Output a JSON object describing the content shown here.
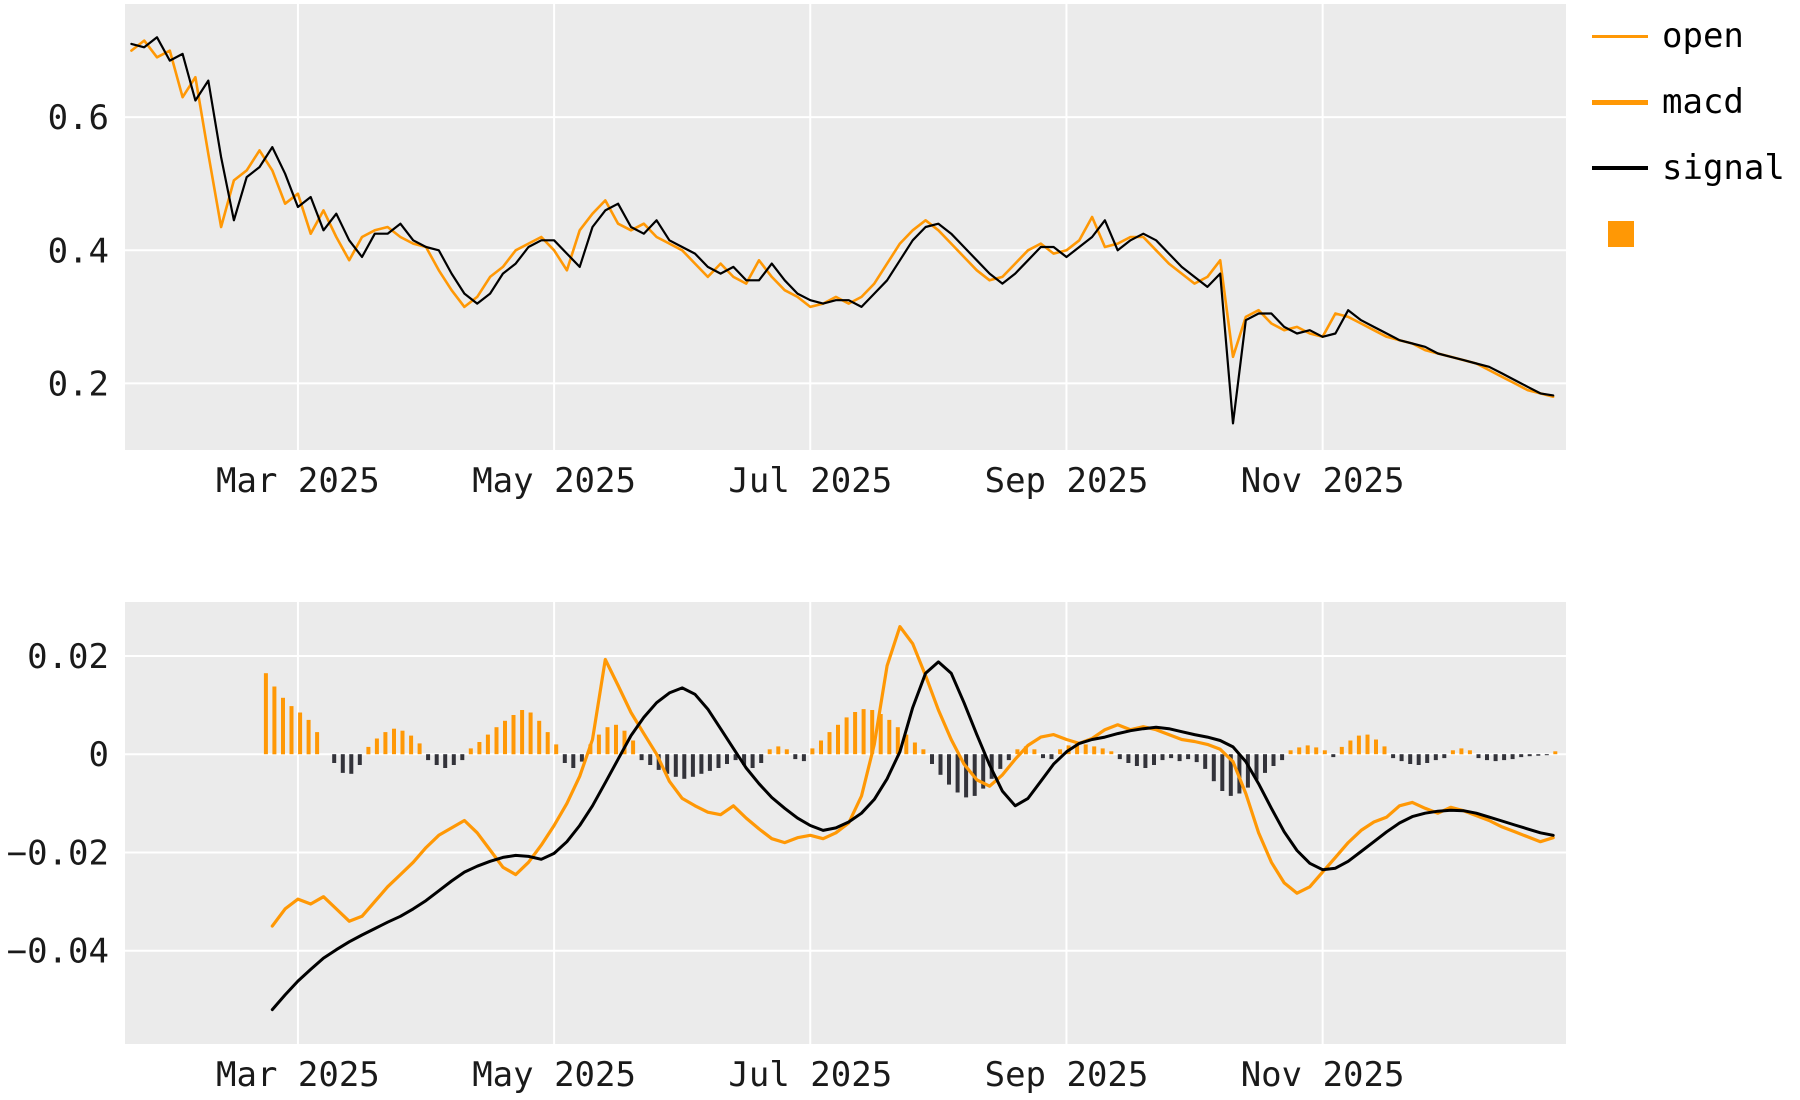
{
  "figure": {
    "background": "#ffffff",
    "panel_bg": "#ebebeb",
    "grid_color": "#ffffff",
    "tick_color": "#1a1a1a",
    "orange": "#ff9805",
    "black": "#000000",
    "histogram_negative": "#33333a"
  },
  "legend": {
    "items": [
      {
        "label": "open",
        "type": "line",
        "color": "#ff9805",
        "weight": 3
      },
      {
        "label": "macd",
        "type": "line",
        "color": "#ff9805",
        "weight": 5
      },
      {
        "label": "signal",
        "type": "line",
        "color": "#000000",
        "weight": 4
      },
      {
        "label": "",
        "type": "square",
        "color": "#ff9805"
      }
    ]
  },
  "chart_data": [
    {
      "type": "line",
      "panel": "price",
      "title": "",
      "xlabel": "",
      "ylabel": "",
      "x_unit": "months_after_2025-01-01",
      "xlim": [
        0.65,
        11.9
      ],
      "ylim": [
        0.1,
        0.77
      ],
      "grid": true,
      "xticks": [
        {
          "value": 2,
          "label": "Mar 2025"
        },
        {
          "value": 4,
          "label": "May 2025"
        },
        {
          "value": 6,
          "label": "Jul 2025"
        },
        {
          "value": 8,
          "label": "Sep 2025"
        },
        {
          "value": 10,
          "label": "Nov 2025"
        }
      ],
      "yticks": [
        {
          "value": 0.2,
          "label": "0.2"
        },
        {
          "value": 0.4,
          "label": "0.4"
        },
        {
          "value": 0.6,
          "label": "0.6"
        }
      ],
      "series": [
        {
          "name": "open",
          "color": "#ff9805",
          "width": 2.6,
          "start": 0.7,
          "step": 0.1,
          "values": [
            0.7,
            0.715,
            0.69,
            0.7,
            0.63,
            0.66,
            0.545,
            0.435,
            0.505,
            0.52,
            0.55,
            0.52,
            0.47,
            0.485,
            0.425,
            0.46,
            0.42,
            0.385,
            0.42,
            0.43,
            0.435,
            0.42,
            0.41,
            0.405,
            0.37,
            0.34,
            0.315,
            0.33,
            0.36,
            0.375,
            0.4,
            0.41,
            0.42,
            0.4,
            0.37,
            0.43,
            0.455,
            0.475,
            0.44,
            0.43,
            0.44,
            0.42,
            0.41,
            0.4,
            0.38,
            0.36,
            0.38,
            0.36,
            0.35,
            0.385,
            0.36,
            0.34,
            0.33,
            0.315,
            0.32,
            0.33,
            0.32,
            0.33,
            0.35,
            0.38,
            0.41,
            0.43,
            0.445,
            0.43,
            0.41,
            0.39,
            0.37,
            0.355,
            0.36,
            0.38,
            0.4,
            0.41,
            0.395,
            0.4,
            0.415,
            0.45,
            0.405,
            0.41,
            0.42,
            0.42,
            0.4,
            0.38,
            0.365,
            0.35,
            0.36,
            0.385,
            0.24,
            0.3,
            0.31,
            0.29,
            0.28,
            0.285,
            0.275,
            0.27,
            0.305,
            0.3,
            0.29,
            0.28,
            0.27,
            0.265,
            0.26,
            0.25,
            0.245,
            0.24,
            0.235,
            0.23,
            0.22,
            0.21,
            0.2,
            0.19,
            0.185,
            0.18
          ]
        },
        {
          "name": "black_line",
          "color": "#000000",
          "width": 2.2,
          "start": 0.7,
          "step": 0.1,
          "values": [
            0.71,
            0.705,
            0.72,
            0.685,
            0.695,
            0.625,
            0.655,
            0.54,
            0.445,
            0.51,
            0.525,
            0.555,
            0.515,
            0.465,
            0.48,
            0.43,
            0.455,
            0.415,
            0.39,
            0.425,
            0.425,
            0.44,
            0.415,
            0.405,
            0.4,
            0.365,
            0.335,
            0.32,
            0.335,
            0.365,
            0.38,
            0.405,
            0.415,
            0.415,
            0.395,
            0.375,
            0.435,
            0.46,
            0.47,
            0.435,
            0.425,
            0.445,
            0.415,
            0.405,
            0.395,
            0.375,
            0.365,
            0.375,
            0.355,
            0.355,
            0.38,
            0.355,
            0.335,
            0.325,
            0.32,
            0.325,
            0.325,
            0.315,
            0.335,
            0.355,
            0.385,
            0.415,
            0.435,
            0.44,
            0.425,
            0.405,
            0.385,
            0.365,
            0.35,
            0.365,
            0.385,
            0.405,
            0.405,
            0.39,
            0.405,
            0.42,
            0.445,
            0.4,
            0.415,
            0.425,
            0.415,
            0.395,
            0.375,
            0.36,
            0.345,
            0.365,
            0.14,
            0.295,
            0.305,
            0.305,
            0.285,
            0.275,
            0.28,
            0.27,
            0.275,
            0.31,
            0.295,
            0.285,
            0.275,
            0.265,
            0.26,
            0.255,
            0.245,
            0.24,
            0.235,
            0.23,
            0.225,
            0.215,
            0.205,
            0.195,
            0.185,
            0.182
          ]
        }
      ]
    },
    {
      "type": "line+bar",
      "panel": "macd",
      "title": "",
      "xlabel": "",
      "ylabel": "",
      "x_unit": "months_after_2025-01-01",
      "xlim": [
        0.65,
        11.9
      ],
      "ylim": [
        -0.059,
        0.031
      ],
      "grid": true,
      "xticks": [
        {
          "value": 2,
          "label": "Mar 2025"
        },
        {
          "value": 4,
          "label": "May 2025"
        },
        {
          "value": 6,
          "label": "Jul 2025"
        },
        {
          "value": 8,
          "label": "Sep 2025"
        },
        {
          "value": 10,
          "label": "Nov 2025"
        }
      ],
      "yticks": [
        {
          "value": 0.02,
          "label": "0.02"
        },
        {
          "value": 0,
          "label": "0"
        },
        {
          "value": -0.02,
          "label": "−0.02"
        },
        {
          "value": -0.04,
          "label": "−0.04"
        }
      ],
      "series": [
        {
          "name": "macd",
          "color": "#ff9805",
          "width": 3.2,
          "start": 1.8,
          "step": 0.1,
          "values": [
            -0.035,
            -0.0315,
            -0.0295,
            -0.0305,
            -0.029,
            -0.0315,
            -0.034,
            -0.033,
            -0.03,
            -0.027,
            -0.0245,
            -0.022,
            -0.019,
            -0.0165,
            -0.015,
            -0.0135,
            -0.016,
            -0.0195,
            -0.023,
            -0.0245,
            -0.022,
            -0.0185,
            -0.0145,
            -0.01,
            -0.0045,
            0.003,
            0.0193,
            0.014,
            0.0085,
            0.0042,
            0.0,
            -0.0055,
            -0.009,
            -0.0105,
            -0.0118,
            -0.0123,
            -0.0105,
            -0.013,
            -0.0152,
            -0.0172,
            -0.018,
            -0.017,
            -0.0165,
            -0.0172,
            -0.016,
            -0.014,
            -0.0085,
            0.002,
            0.018,
            0.026,
            0.0225,
            0.016,
            0.009,
            0.003,
            -0.002,
            -0.0052,
            -0.0065,
            -0.0042,
            -0.001,
            0.0018,
            0.0035,
            0.004,
            0.003,
            0.0022,
            0.0032,
            0.005,
            0.006,
            0.005,
            0.0056,
            0.005,
            0.004,
            0.003,
            0.0026,
            0.002,
            0.001,
            -0.0015,
            -0.008,
            -0.016,
            -0.022,
            -0.0262,
            -0.0283,
            -0.027,
            -0.024,
            -0.021,
            -0.018,
            -0.0155,
            -0.0138,
            -0.0128,
            -0.0105,
            -0.0098,
            -0.011,
            -0.012,
            -0.0108,
            -0.0115,
            -0.0125,
            -0.0135,
            -0.0148,
            -0.0158,
            -0.0168,
            -0.0178,
            -0.017
          ]
        },
        {
          "name": "signal",
          "color": "#000000",
          "width": 3.0,
          "start": 1.8,
          "step": 0.1,
          "values": [
            -0.052,
            -0.049,
            -0.0462,
            -0.0438,
            -0.0415,
            -0.0398,
            -0.0382,
            -0.0368,
            -0.0355,
            -0.0342,
            -0.033,
            -0.0315,
            -0.0298,
            -0.0278,
            -0.0258,
            -0.024,
            -0.0228,
            -0.0218,
            -0.021,
            -0.0206,
            -0.0208,
            -0.0214,
            -0.0202,
            -0.0178,
            -0.0145,
            -0.0105,
            -0.0058,
            -0.001,
            0.0038,
            0.0075,
            0.0105,
            0.0125,
            0.0135,
            0.0122,
            0.0092,
            0.0052,
            0.0012,
            -0.0028,
            -0.006,
            -0.0088,
            -0.011,
            -0.013,
            -0.0145,
            -0.0155,
            -0.015,
            -0.0138,
            -0.012,
            -0.0092,
            -0.005,
            0.0005,
            0.0095,
            0.0165,
            0.0188,
            0.0165,
            0.0105,
            0.004,
            -0.0022,
            -0.0075,
            -0.0105,
            -0.009,
            -0.0055,
            -0.002,
            0.0005,
            0.0022,
            0.003,
            0.0035,
            0.0042,
            0.0048,
            0.0052,
            0.0055,
            0.0052,
            0.0046,
            0.004,
            0.0035,
            0.0028,
            0.0015,
            -0.0015,
            -0.006,
            -0.011,
            -0.0158,
            -0.0196,
            -0.0222,
            -0.0235,
            -0.0232,
            -0.0218,
            -0.0198,
            -0.0178,
            -0.0158,
            -0.014,
            -0.0127,
            -0.012,
            -0.0116,
            -0.0114,
            -0.0115,
            -0.012,
            -0.0128,
            -0.0136,
            -0.0144,
            -0.0152,
            -0.016,
            -0.0165
          ]
        }
      ],
      "histogram": {
        "name": "macd_histogram",
        "start": 1.75,
        "step": 0.066667,
        "positive_color": "#ff9805",
        "negative_color": "#33333a",
        "values": [
          0.0165,
          0.0138,
          0.0115,
          0.0098,
          0.0085,
          0.007,
          0.0045,
          0.0,
          -0.0018,
          -0.0038,
          -0.004,
          -0.0022,
          0.0015,
          0.0032,
          0.0045,
          0.0052,
          0.0048,
          0.0038,
          0.0022,
          -0.0012,
          -0.0022,
          -0.0028,
          -0.0022,
          -0.0012,
          0.0012,
          0.0025,
          0.004,
          0.0055,
          0.0068,
          0.008,
          0.009,
          0.0085,
          0.0068,
          0.0045,
          0.002,
          -0.0018,
          -0.0028,
          -0.0015,
          0.002,
          0.004,
          0.0055,
          0.006,
          0.0048,
          0.0028,
          -0.0012,
          -0.0022,
          -0.0032,
          -0.004,
          -0.0046,
          -0.005,
          -0.0046,
          -0.004,
          -0.0034,
          -0.0028,
          -0.002,
          -0.0012,
          -0.0022,
          -0.0028,
          -0.0018,
          0.001,
          0.0016,
          0.001,
          -0.001,
          -0.0014,
          0.0012,
          0.0028,
          0.0045,
          0.006,
          0.0075,
          0.0086,
          0.0092,
          0.009,
          0.0082,
          0.007,
          0.0055,
          0.004,
          0.0024,
          0.001,
          -0.002,
          -0.0042,
          -0.0062,
          -0.0078,
          -0.0088,
          -0.0085,
          -0.007,
          -0.005,
          -0.003,
          -0.0012,
          0.001,
          0.0016,
          0.001,
          -0.0008,
          -0.001,
          0.001,
          0.0018,
          0.0022,
          0.002,
          0.0016,
          0.0012,
          0.0006,
          -0.001,
          -0.0018,
          -0.0024,
          -0.0028,
          -0.0022,
          -0.0012,
          -0.0008,
          -0.0014,
          -0.001,
          -0.0016,
          -0.003,
          -0.0055,
          -0.0075,
          -0.0085,
          -0.008,
          -0.0068,
          -0.0052,
          -0.0038,
          -0.0024,
          -0.0012,
          0.0008,
          0.0014,
          0.0018,
          0.0014,
          0.0008,
          -0.0006,
          0.0015,
          0.0028,
          0.0038,
          0.004,
          0.003,
          0.0016,
          -0.0008,
          -0.0014,
          -0.002,
          -0.0022,
          -0.0018,
          -0.0012,
          -0.0008,
          0.0008,
          0.0012,
          0.0008,
          -0.0008,
          -0.0012,
          -0.0014,
          -0.0012,
          -0.001,
          -0.0006,
          -0.0004,
          -0.0003,
          -0.0002,
          0.0006
        ]
      }
    }
  ]
}
